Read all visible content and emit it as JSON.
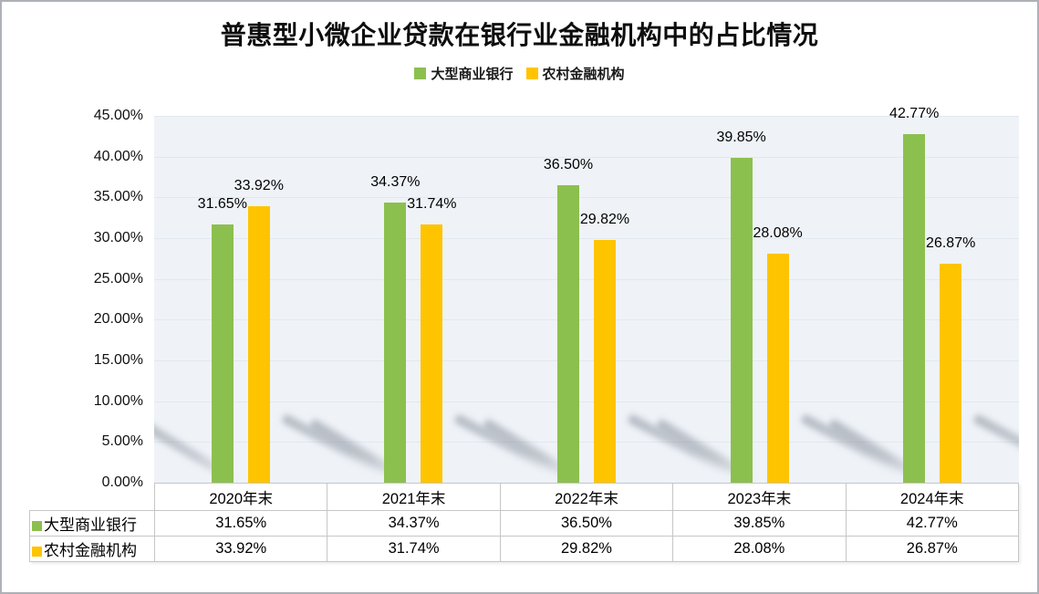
{
  "chart_data": {
    "type": "bar",
    "title": "普惠型小微企业贷款在银行业金融机构中的占比情况",
    "categories": [
      "2020年末",
      "2021年末",
      "2022年末",
      "2023年末",
      "2024年末"
    ],
    "series": [
      {
        "name": "大型商业银行",
        "color": "#8CC04E",
        "values": [
          31.65,
          34.37,
          36.5,
          39.85,
          42.77
        ],
        "labels": [
          "31.65%",
          "34.37%",
          "36.50%",
          "39.85%",
          "42.77%"
        ]
      },
      {
        "name": "农村金融机构",
        "color": "#FFC400",
        "values": [
          33.92,
          31.74,
          29.82,
          28.08,
          26.87
        ],
        "labels": [
          "33.92%",
          "31.74%",
          "29.82%",
          "28.08%",
          "26.87%"
        ]
      }
    ],
    "ylim": [
      0,
      45
    ],
    "y_ticks": [
      "45.00%",
      "40.00%",
      "35.00%",
      "30.00%",
      "25.00%",
      "20.00%",
      "15.00%",
      "10.00%",
      "5.00%",
      "0.00%"
    ],
    "grid": true,
    "legend_position": "top",
    "plot_bg": "#EFF3F8",
    "gridline_color": "#E2E8F0",
    "data_table_shown": true
  }
}
